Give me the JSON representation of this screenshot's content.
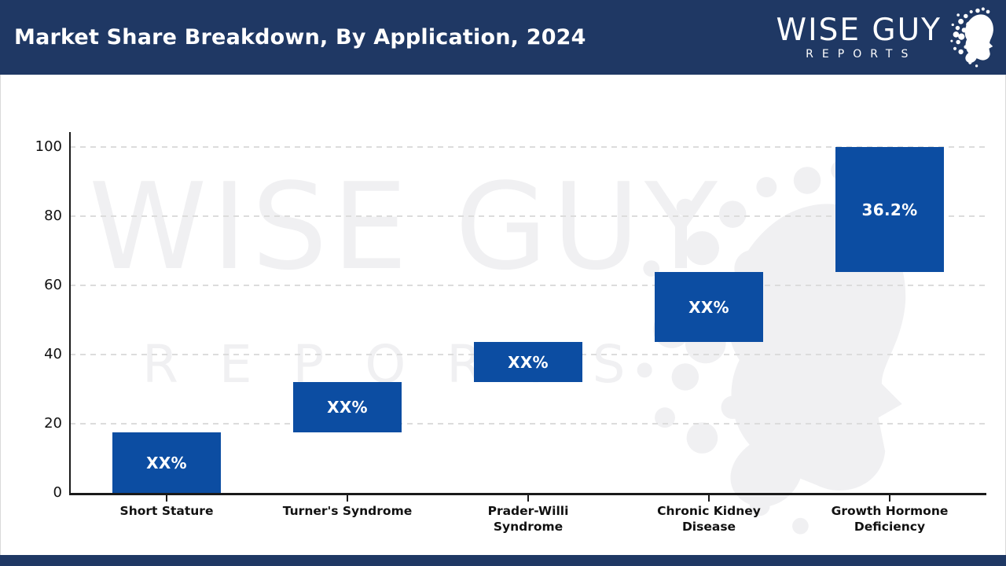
{
  "header": {
    "title": "Market Share Breakdown, By Application, 2024",
    "logo": {
      "line1": "WISE GUY",
      "line2": "REPORTS"
    }
  },
  "watermark": {
    "line1": "WISE GUY",
    "line2": "REPORTS"
  },
  "colors": {
    "header_bg": "#1f3864",
    "bar_fill": "#0c4da2",
    "bar_label": "#ffffff",
    "gridline": "#dcdcdc",
    "axis": "#1a1a1a",
    "watermark": "#f0f0f2"
  },
  "chart_data": {
    "type": "bar",
    "subtype": "floating-waterfall-segments",
    "title": "Market Share Breakdown, By Application, 2024",
    "categories": [
      "Short Stature",
      "Turner's Syndrome",
      "Prader-Willi\nSyndrome",
      "Chronic Kidney\nDisease",
      "Growth Hormone\nDeficiency"
    ],
    "segments": [
      {
        "category": "Short Stature",
        "start": 0,
        "end": 17.5,
        "value": 17.5,
        "label": "XX%"
      },
      {
        "category": "Turner's Syndrome",
        "start": 17.5,
        "end": 32.0,
        "value": 14.5,
        "label": "XX%"
      },
      {
        "category": "Prader-Willi Syndrome",
        "start": 32.0,
        "end": 43.6,
        "value": 11.6,
        "label": "XX%"
      },
      {
        "category": "Chronic Kidney Disease",
        "start": 43.6,
        "end": 63.8,
        "value": 20.2,
        "label": "XX%"
      },
      {
        "category": "Growth Hormone Deficiency",
        "start": 63.8,
        "end": 100,
        "value": 36.2,
        "label": "36.2%"
      }
    ],
    "xlabel": "",
    "ylabel": "",
    "yticks": [
      0,
      20,
      40,
      60,
      80,
      100
    ],
    "ylim": [
      0,
      104
    ],
    "grid": "horizontal-dashed",
    "legend": "none"
  }
}
